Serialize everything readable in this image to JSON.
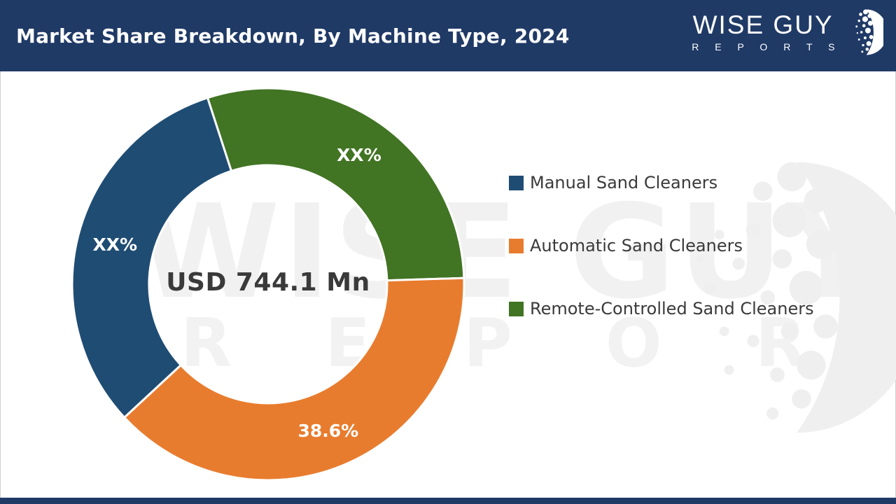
{
  "header": {
    "title": "Market Share Breakdown, By Machine Type, 2024",
    "bg_color": "#203A66",
    "logo": {
      "line1": "WISE GUY",
      "line2": "R E P O R T S"
    }
  },
  "chart_data": {
    "type": "pie",
    "donut": true,
    "title": "Market Share Breakdown, By Machine Type, 2024",
    "center_label": "USD 744.1 Mn",
    "categories": [
      "Manual Sand Cleaners",
      "Automatic Sand Cleaners",
      "Remote-Controlled Sand Cleaners"
    ],
    "values": [
      31.9,
      38.6,
      29.5
    ],
    "value_labels": [
      "XX%",
      "38.6%",
      "XX%"
    ],
    "colors": [
      "#1F4C73",
      "#E87C2E",
      "#417423"
    ],
    "legend_position": "right",
    "start_angle_deg": 108,
    "label_radius": 226,
    "slices": [
      {
        "name": "Remote-Controlled Sand Cleaners",
        "value": 29.5,
        "label": "XX%",
        "color": "#417423"
      },
      {
        "name": "Automatic Sand Cleaners",
        "value": 38.6,
        "label": "38.6%",
        "color": "#E87C2E"
      },
      {
        "name": "Manual Sand Cleaners",
        "value": 31.9,
        "label": "XX%",
        "color": "#1F4C73"
      }
    ]
  },
  "legend": {
    "items": [
      {
        "label": "Manual Sand Cleaners",
        "color": "#1F4C73"
      },
      {
        "label": "Automatic Sand Cleaners",
        "color": "#E87C2E"
      },
      {
        "label": "Remote-Controlled Sand Cleaners",
        "color": "#417423"
      }
    ]
  },
  "watermark": {
    "line1": "WISE GUY",
    "line2": "R E P O R T S"
  }
}
